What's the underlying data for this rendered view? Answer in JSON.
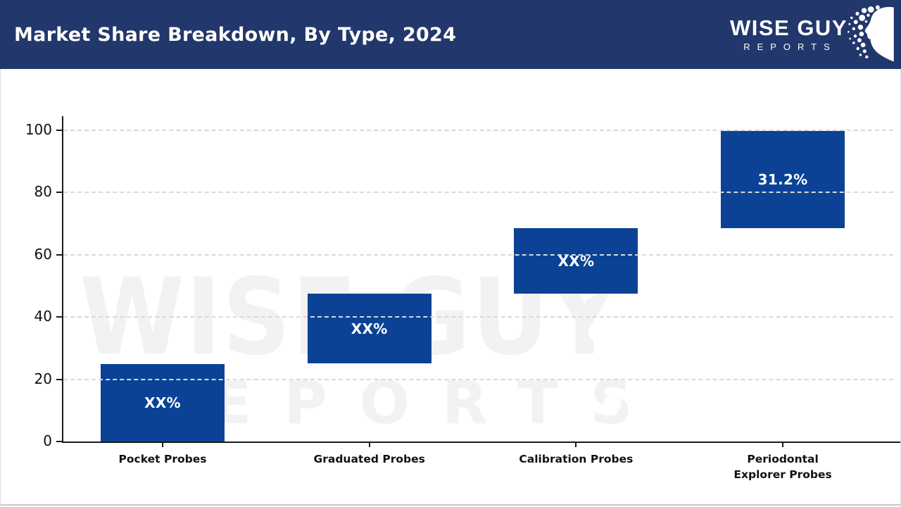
{
  "header": {
    "title": "Market Share Breakdown, By Type, 2024"
  },
  "logo": {
    "name": "WISE GUY",
    "tagline": "REPORTS"
  },
  "watermark": {
    "name": "WISE GUY",
    "tagline": "REPORTS"
  },
  "chart_data": {
    "type": "bar",
    "variant": "floating-segment-waterfall",
    "title": "Market Share Breakdown, By Type, 2024",
    "xlabel": "",
    "ylabel": "",
    "categories": [
      "Pocket Probes",
      "Graduated Probes",
      "Calibration Probes",
      "Periodontal Explorer Probes"
    ],
    "segments": [
      {
        "category": "Pocket Probes",
        "tick_label": "Pocket Probes",
        "start": 0,
        "end": 25,
        "value_label": "XX%"
      },
      {
        "category": "Graduated Probes",
        "tick_label": "Graduated Probes",
        "start": 25,
        "end": 47.5,
        "value_label": "XX%"
      },
      {
        "category": "Calibration Probes",
        "tick_label": "Calibration Probes",
        "start": 47.5,
        "end": 68.5,
        "value_label": "XX%"
      },
      {
        "category": "Periodontal Explorer Probes",
        "tick_label": "Periodontal\nExplorer Probes",
        "start": 68.5,
        "end": 99.7,
        "value_label": "31.2%"
      }
    ],
    "yticks": [
      0,
      20,
      40,
      60,
      80,
      100
    ],
    "ylim": [
      0,
      105
    ],
    "grid": {
      "axis": "y",
      "style": "dashed",
      "color": "#d9d9d9",
      "drawn_above_bars": true
    },
    "legend": "none",
    "colors": {
      "bar": "#0b4295",
      "bar_label": "#ffffff",
      "axis": "#1a1a1a",
      "tick_label": "#111111"
    }
  },
  "colors": {
    "header_bg": "#22376b",
    "header_text": "#ffffff",
    "page_bg": "#ffffff",
    "watermark": "#f2f2f4",
    "edge_line": "#c9c9ce"
  }
}
